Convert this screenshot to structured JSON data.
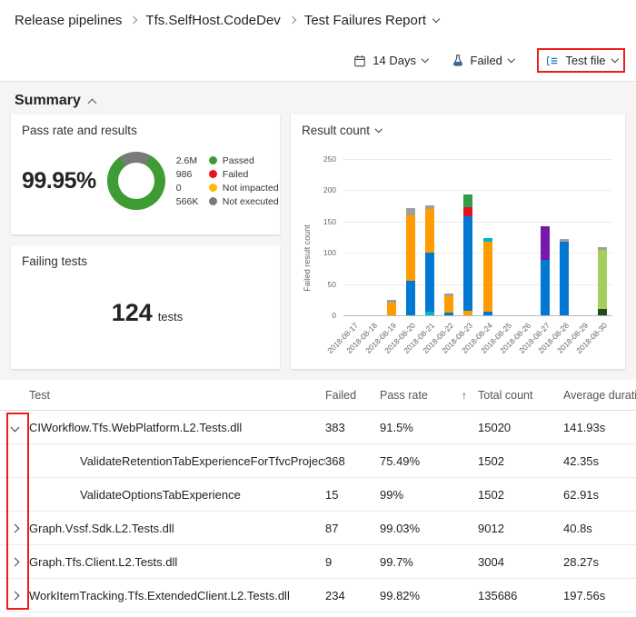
{
  "annotation": {
    "color": "#ee1c1c"
  },
  "breadcrumb": {
    "items": [
      {
        "label": "Release pipelines"
      },
      {
        "label": "Tfs.SelfHost.CodeDev"
      },
      {
        "label": "Test Failures Report",
        "has_dropdown": true
      }
    ]
  },
  "toolbar": {
    "filters": [
      {
        "icon": "calendar-icon",
        "label": "14 Days"
      },
      {
        "icon": "flask-icon",
        "label": "Failed"
      },
      {
        "icon": "group-rows-icon",
        "label": "Test file",
        "annotated": true
      }
    ]
  },
  "summary": {
    "title": "Summary",
    "pass_rate_card": {
      "title": "Pass rate and results",
      "pass_rate": "99.95%"
    },
    "failing_tests_card": {
      "title": "Failing tests",
      "count": "124",
      "unit": "tests"
    }
  },
  "chart_data": [
    {
      "type": "pie",
      "donut": true,
      "title": "Pass rate and results",
      "center_value": "99.95%",
      "slices": [
        {
          "label": "Passed",
          "value": "2.6M",
          "pct": 82,
          "color": "#3f9c35"
        },
        {
          "label": "Failed",
          "value": "986",
          "pct": 0.03,
          "color": "#e81123"
        },
        {
          "label": "Not impacted",
          "value": "0",
          "pct": 0,
          "color": "#ffb900"
        },
        {
          "label": "Not executed",
          "value": "566K",
          "pct": 17.97,
          "color": "#7a7a7a"
        }
      ]
    },
    {
      "type": "bar",
      "stacked": true,
      "title": "Result count",
      "ylabel": "Failed result count",
      "ylim": [
        0,
        250
      ],
      "yticks": [
        0,
        50,
        100,
        150,
        200,
        250
      ],
      "categories": [
        "2018-08-17",
        "2018-08-18",
        "2018-08-19",
        "2018-08-20",
        "2018-08-21",
        "2018-08-22",
        "2018-08-23",
        "2018-08-24",
        "2018-08-25",
        "2018-08-26",
        "2018-08-27",
        "2018-08-28",
        "2018-08-29",
        "2018-08-30"
      ],
      "colors": {
        "blue": "#0078d4",
        "orange": "#ff9d00",
        "gray": "#a19f9d",
        "teal": "#00b7c3",
        "red": "#e81123",
        "green": "#2f9e44",
        "purple": "#7719aa",
        "lightgreen": "#a5ce5e",
        "darkgreen": "#234d20"
      },
      "bars": [
        [],
        [],
        [
          {
            "c": "orange",
            "v": 20
          },
          {
            "c": "gray",
            "v": 5
          }
        ],
        [
          {
            "c": "blue",
            "v": 55
          },
          {
            "c": "orange",
            "v": 105
          },
          {
            "c": "gray",
            "v": 12
          }
        ],
        [
          {
            "c": "teal",
            "v": 6
          },
          {
            "c": "blue",
            "v": 94
          },
          {
            "c": "orange",
            "v": 70
          },
          {
            "c": "gray",
            "v": 6
          }
        ],
        [
          {
            "c": "blue",
            "v": 5
          },
          {
            "c": "orange",
            "v": 25
          },
          {
            "c": "gray",
            "v": 5
          }
        ],
        [
          {
            "c": "orange",
            "v": 8
          },
          {
            "c": "blue",
            "v": 150
          },
          {
            "c": "red",
            "v": 15
          },
          {
            "c": "green",
            "v": 20
          }
        ],
        [
          {
            "c": "blue",
            "v": 6
          },
          {
            "c": "orange",
            "v": 112
          },
          {
            "c": "teal",
            "v": 5
          }
        ],
        [],
        [],
        [
          {
            "c": "blue",
            "v": 88
          },
          {
            "c": "purple",
            "v": 55
          }
        ],
        [
          {
            "c": "blue",
            "v": 118
          },
          {
            "c": "gray",
            "v": 4
          }
        ],
        [],
        [
          {
            "c": "darkgreen",
            "v": 10
          },
          {
            "c": "lightgreen",
            "v": 95
          },
          {
            "c": "gray",
            "v": 4
          }
        ]
      ]
    }
  ],
  "table": {
    "columns": [
      "Test",
      "Failed",
      "Pass rate",
      "Total count",
      "Average duration"
    ],
    "sort": {
      "column": "Pass rate",
      "direction": "asc",
      "icon": "↑"
    },
    "rows": [
      {
        "level": 0,
        "expanded": true,
        "name": "CIWorkflow.Tfs.WebPlatform.L2.Tests.dll",
        "failed": "383",
        "pass_rate": "91.5%",
        "total_count": "15020",
        "avg_duration": "141.93s"
      },
      {
        "level": 1,
        "name": "ValidateRetentionTabExperienceForTfvcProject",
        "failed": "368",
        "pass_rate": "75.49%",
        "total_count": "1502",
        "avg_duration": "42.35s"
      },
      {
        "level": 1,
        "name": "ValidateOptionsTabExperience",
        "failed": "15",
        "pass_rate": "99%",
        "total_count": "1502",
        "avg_duration": "62.91s"
      },
      {
        "level": 0,
        "expanded": false,
        "name": "Graph.Vssf.Sdk.L2.Tests.dll",
        "failed": "87",
        "pass_rate": "99.03%",
        "total_count": "9012",
        "avg_duration": "40.8s"
      },
      {
        "level": 0,
        "expanded": false,
        "name": "Graph.Tfs.Client.L2.Tests.dll",
        "failed": "9",
        "pass_rate": "99.7%",
        "total_count": "3004",
        "avg_duration": "28.27s"
      },
      {
        "level": 0,
        "expanded": false,
        "name": "WorkItemTracking.Tfs.ExtendedClient.L2.Tests.dll",
        "failed": "234",
        "pass_rate": "99.82%",
        "total_count": "135686",
        "avg_duration": "197.56s"
      }
    ]
  }
}
